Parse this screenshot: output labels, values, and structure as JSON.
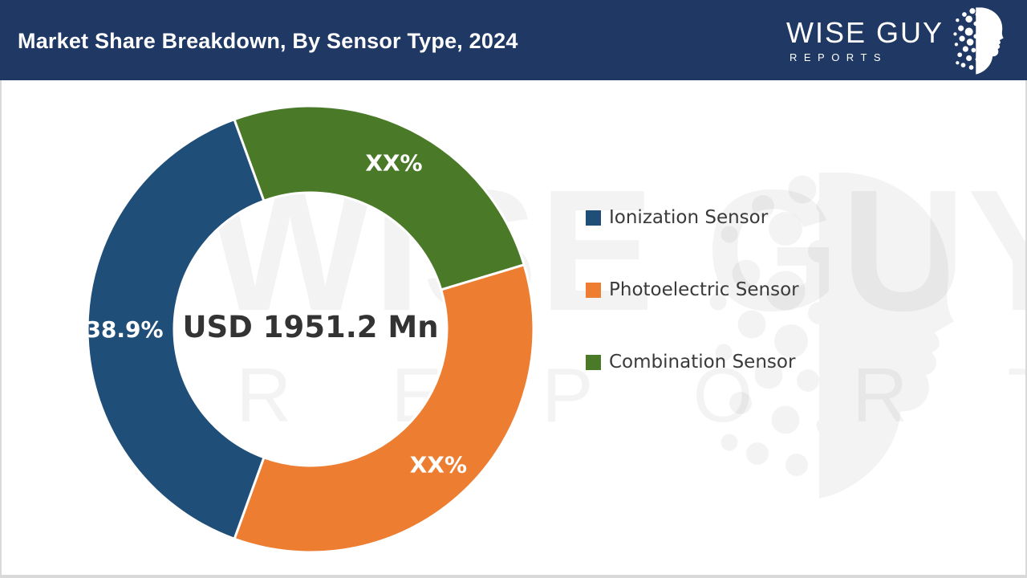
{
  "header": {
    "title": "Market Share Breakdown, By Sensor Type, 2024",
    "logo_brand": "WISE GUY",
    "logo_sub": "REPORTS"
  },
  "watermark": {
    "brand": "WISE GUY",
    "sub": "REPORTS"
  },
  "chart_data": {
    "type": "pie",
    "subtype": "donut",
    "title": "Market Share Breakdown, By Sensor Type, 2024",
    "center_label": "USD 1951.2 Mn",
    "legend_position": "right",
    "start_angle_deg": 340,
    "draw_order": [
      2,
      1,
      0
    ],
    "series": [
      {
        "name": "Ionization Sensor",
        "label": "38.9%",
        "value_pct": 38.9,
        "color": "#1f4e78"
      },
      {
        "name": "Photoelectric Sensor",
        "label": "XX%",
        "value_pct": 35.2,
        "color": "#ed7d31"
      },
      {
        "name": "Combination Sensor",
        "label": "XX%",
        "value_pct": 25.9,
        "color": "#4a7a28"
      }
    ],
    "colors": {
      "header_bg": "#1f3864",
      "border": "#d9d9d9",
      "center_text": "#333333",
      "segment_label_text": "#ffffff"
    }
  }
}
